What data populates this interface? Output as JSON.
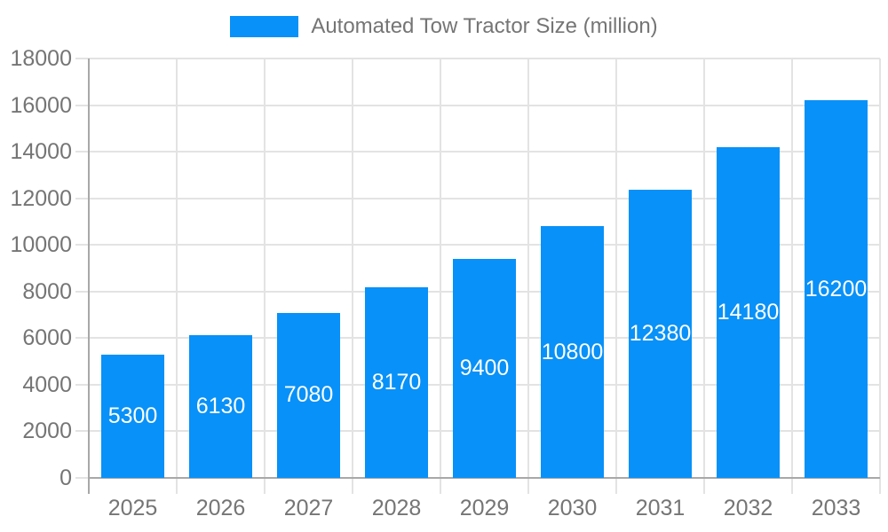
{
  "chart_data": {
    "type": "bar",
    "title": "Automated Tow Tractor Size (million)",
    "categories": [
      "2025",
      "2026",
      "2027",
      "2028",
      "2029",
      "2030",
      "2031",
      "2032",
      "2033"
    ],
    "series": [
      {
        "name": "Automated Tow Tractor Size (million)",
        "values": [
          5300,
          6130,
          7080,
          8170,
          9400,
          10800,
          12380,
          14180,
          16200
        ]
      }
    ],
    "value_labels": [
      "5300",
      "6130",
      "7080",
      "8170",
      "9400",
      "10800",
      "12380",
      "14180",
      "16200"
    ],
    "ylim": [
      0,
      18000
    ],
    "ytick_step": 2000,
    "ytick_labels": [
      "0",
      "2000",
      "4000",
      "6000",
      "8000",
      "10000",
      "12000",
      "14000",
      "16000",
      "18000"
    ],
    "grid": true,
    "legend_position": "top",
    "bar_color": "#0891f8",
    "value_label_color": "#ffffff",
    "axis_text_color": "#757575",
    "grid_color": "#e3e3e3",
    "axis_line_color": "#a8a8a8"
  }
}
